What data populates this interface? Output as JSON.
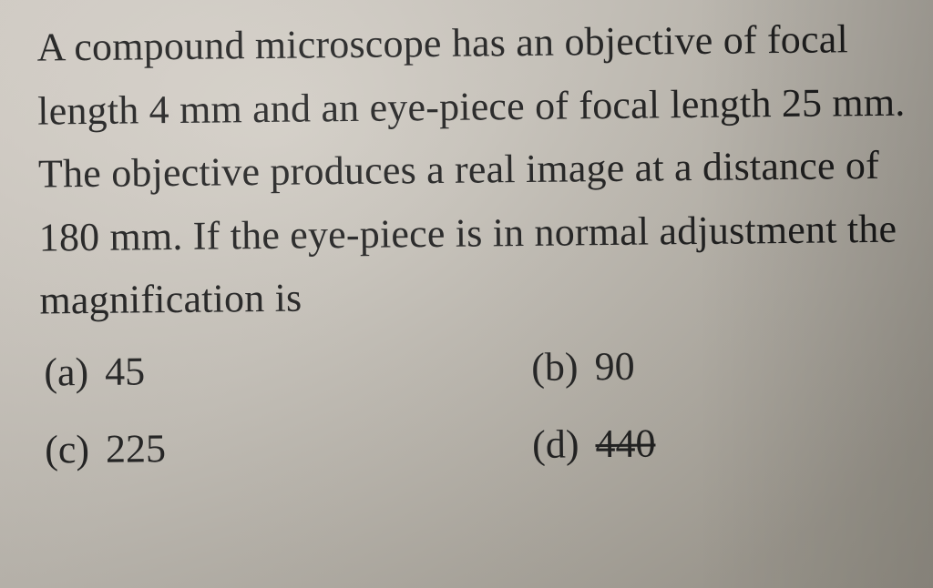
{
  "question": {
    "text": "A compound microscope has an objective of focal length 4 mm and an eye-piece of focal length 25 mm. The objective produces a real image at a distance of 180 mm. If the eye-piece is in normal adjustment the magnification is",
    "fontsize_pt": 33,
    "color": "#141414"
  },
  "options": {
    "a": {
      "label": "(a)",
      "value": "45"
    },
    "b": {
      "label": "(b)",
      "value": "90"
    },
    "c": {
      "label": "(c)",
      "value": "225"
    },
    "d": {
      "label": "(d)",
      "value": "440",
      "struck": true
    }
  },
  "styling": {
    "background_gradient": [
      "#d8d2ca",
      "#c9c4bb",
      "#b8b3a9",
      "#a8a398"
    ],
    "font_family": "Georgia, serif",
    "option_fontsize_pt": 33,
    "line_height": 1.58,
    "rotation_deg": -0.6
  }
}
